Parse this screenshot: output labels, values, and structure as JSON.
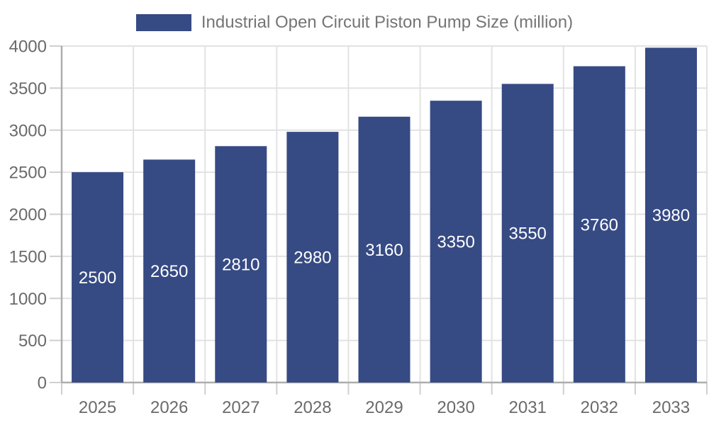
{
  "page": {
    "background": "#ffffff"
  },
  "legend": {
    "label": "Industrial Open Circuit Piston Pump Size (million)",
    "swatch_color": "#364A84",
    "text_color": "#757575"
  },
  "chart_data": {
    "type": "bar",
    "title": "Industrial Open Circuit Piston Pump Size (million)",
    "series_name": "Industrial Open Circuit Piston Pump Size (million)",
    "categories": [
      "2025",
      "2026",
      "2027",
      "2028",
      "2029",
      "2030",
      "2031",
      "2032",
      "2033"
    ],
    "values": [
      2500,
      2650,
      2810,
      2980,
      3160,
      3350,
      3550,
      3760,
      3980
    ],
    "xlabel": "",
    "ylabel": "",
    "ylim": [
      0,
      4000
    ],
    "yticks": [
      0,
      500,
      1000,
      1500,
      2000,
      2500,
      3000,
      3500,
      4000
    ],
    "grid": true,
    "legend_position": "top-center",
    "bar_color": "#364A84",
    "value_label_color": "#ffffff",
    "value_label_position": "inside-middle"
  },
  "style": {
    "grid_color": "#E2E2E2",
    "axis_line_color": "#ADADAD",
    "tick_color": "#CFCFCF",
    "axis_label_color": "#6A6A6A"
  }
}
